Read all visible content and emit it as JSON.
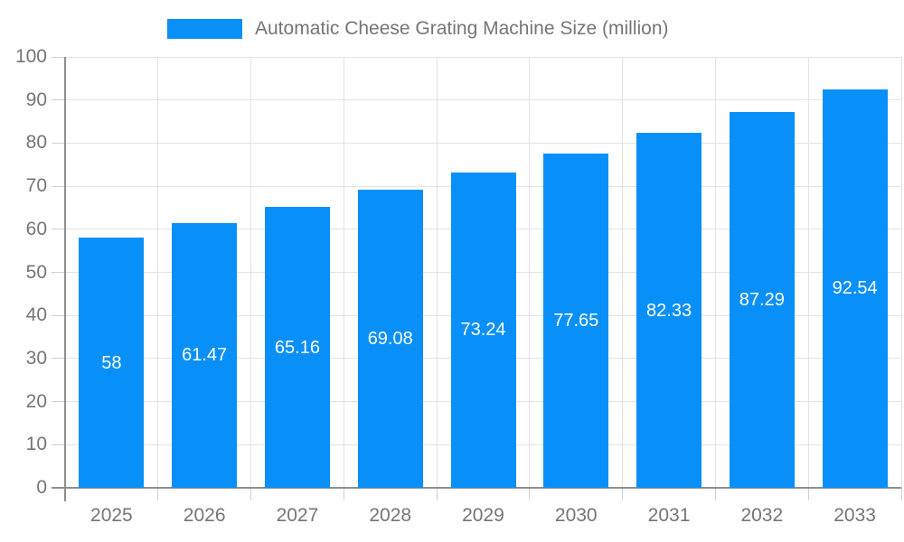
{
  "chart_data": {
    "type": "bar",
    "title": "Automatic Cheese Grating Machine Size (million)",
    "legend": {
      "label": "Automatic Cheese Grating Machine Size (million)",
      "position": "top"
    },
    "categories": [
      "2025",
      "2026",
      "2027",
      "2028",
      "2029",
      "2030",
      "2031",
      "2032",
      "2033"
    ],
    "series": [
      {
        "name": "Automatic Cheese Grating Machine Size (million)",
        "values": [
          58,
          61.47,
          65.16,
          69.08,
          73.24,
          77.65,
          82.33,
          87.29,
          92.54
        ]
      }
    ],
    "value_labels": [
      "58",
      "61.47",
      "65.16",
      "69.08",
      "73.24",
      "77.65",
      "82.33",
      "87.29",
      "92.54"
    ],
    "xlabel": "",
    "ylabel": "",
    "ylim": [
      0,
      100
    ],
    "y_tick_step": 10,
    "y_tick_labels": [
      "0",
      "10",
      "20",
      "30",
      "40",
      "50",
      "60",
      "70",
      "80",
      "90",
      "100"
    ],
    "grid": "on",
    "colors": {
      "bar": "#0890F8",
      "grid_line": "#E3E3E3",
      "axis_line": "#8F8F8F",
      "tick": "#CFCFCF",
      "axis_text": "#757575",
      "value_label_text": "#FFFFFF",
      "background": "#FFFFFF"
    }
  }
}
